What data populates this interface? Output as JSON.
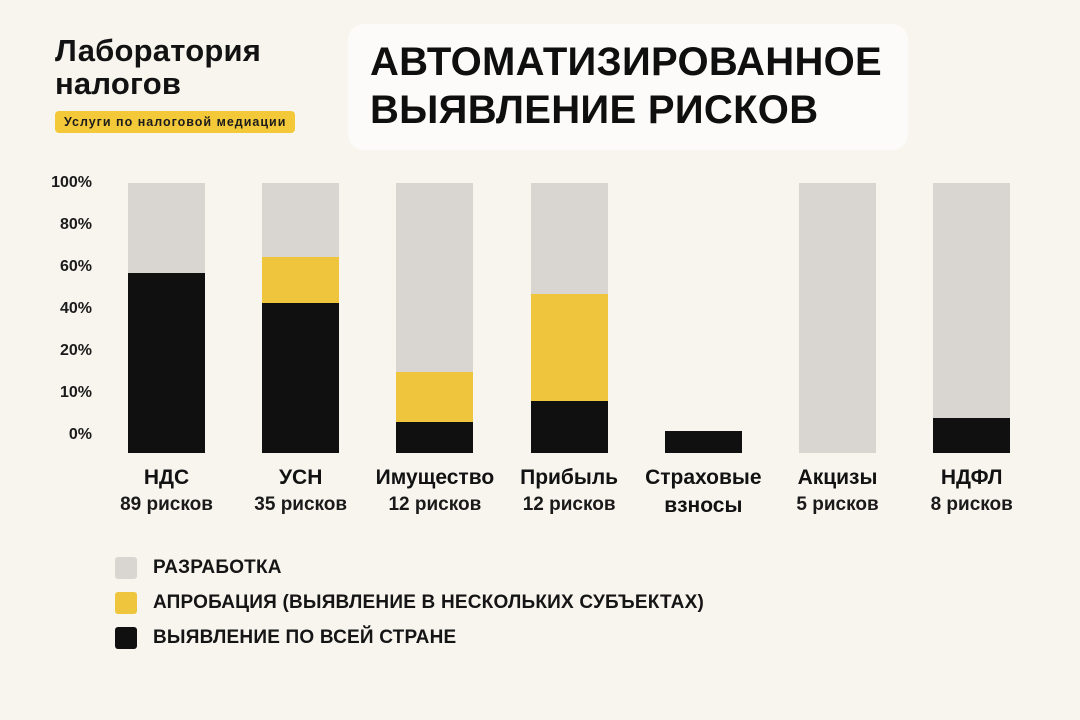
{
  "brand": {
    "line1": "Лаборатория",
    "line2": "налогов",
    "tagline": "Услуги по налоговой медиации"
  },
  "title": {
    "line1": "АВТОМАТИЗИРОВАННОЕ",
    "line2": "ВЫЯВЛЕНИЕ РИСКОВ"
  },
  "colors": {
    "background": "#f8f5ef",
    "development": "#d9d6d1",
    "testing": "#eec53c",
    "nationwide": "#101010",
    "badge_yellow": "#f3c93a"
  },
  "chart_data": {
    "type": "bar",
    "stacked": true,
    "title": "АВТОМАТИЗИРОВАННОЕ ВЫЯВЛЕНИЕ РИСКОВ",
    "y_ticks": [
      "100%",
      "80%",
      "60%",
      "40%",
      "20%",
      "10%",
      "0%"
    ],
    "y_scale": "piecewise non-linear: tick values 0,10,20,40,60,80,100 are evenly spaced",
    "legend_position": "bottom-left",
    "grid": false,
    "categories": [
      "НДС",
      "УСН",
      "Имущество",
      "Прибыль",
      "Страховые взносы",
      "Акцизы",
      "НДФЛ"
    ],
    "category_sublabels": [
      "89 рисков",
      "35 рисков",
      "12 рисков",
      "12 рисков",
      "",
      "5 рисков",
      "8 рисков"
    ],
    "series": [
      {
        "name": "ВЫЯВЛЕНИЕ ПО ВСЕЙ СТРАНЕ",
        "color": "#101010",
        "values": [
          57,
          43,
          3,
          8,
          1,
          0,
          4
        ]
      },
      {
        "name": "АПРОБАЦИЯ (ВЫЯВЛЕНИЕ В НЕСКОЛЬКИХ СУБЪЕКТАХ)",
        "color": "#eec53c",
        "values": [
          0,
          22,
          12,
          39,
          0,
          0,
          0
        ]
      },
      {
        "name": "РАЗРАБОТКА",
        "color": "#d9d6d1",
        "values": [
          43,
          35,
          85,
          53,
          0,
          100,
          96
        ]
      }
    ]
  },
  "legend": [
    {
      "label": "РАЗРАБОТКА",
      "color": "#d9d6d1"
    },
    {
      "label": "АПРОБАЦИЯ (ВЫЯВЛЕНИЕ В НЕСКОЛЬКИХ СУБЪЕКТАХ)",
      "color": "#eec53c"
    },
    {
      "label": "ВЫЯВЛЕНИЕ ПО ВСЕЙ СТРАНЕ",
      "color": "#101010"
    }
  ]
}
